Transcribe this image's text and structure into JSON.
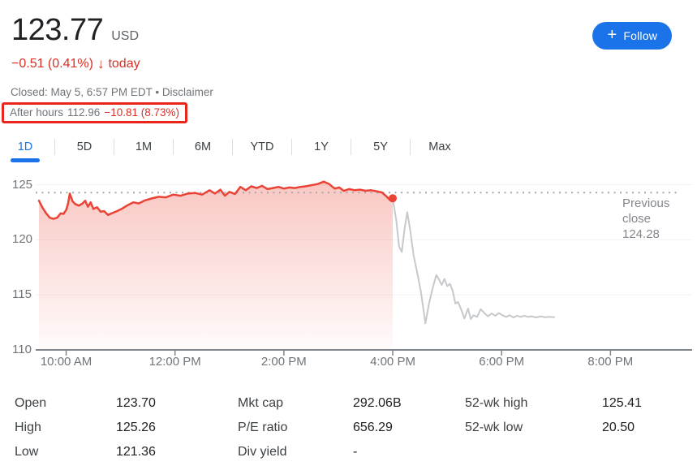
{
  "header": {
    "price": "123.77",
    "currency": "USD",
    "change": "−0.51 (0.41%)",
    "change_arrow": "↓",
    "change_suffix": "today",
    "status_line": "Closed: May 5, 6:57 PM EDT • ",
    "disclaimer_link": "Disclaimer",
    "after_hours": {
      "label": "After hours",
      "price": "112.96",
      "change": "−10.81 (8.73%)"
    },
    "follow_button": {
      "plus_icon": "+",
      "label": "Follow"
    }
  },
  "tabs": {
    "items": [
      "1D",
      "5D",
      "1M",
      "6M",
      "YTD",
      "1Y",
      "5Y",
      "Max"
    ],
    "active": "1D"
  },
  "chart": {
    "previous_close_lines": [
      "Previous",
      "close",
      "124.28"
    ]
  },
  "chart_data": {
    "type": "line",
    "title": "1D intraday price chart",
    "x_unit": "minutes since 9:30 AM",
    "x_axis": {
      "labels": [
        "10:00 AM",
        "12:00 PM",
        "2:00 PM",
        "4:00 PM",
        "6:00 PM",
        "8:00 PM"
      ],
      "tick_minutes": [
        30,
        150,
        270,
        390,
        510,
        630
      ]
    },
    "y_axis": {
      "ticks": [
        110,
        115,
        120,
        125
      ],
      "range": [
        110,
        126.3
      ]
    },
    "previous_close": 124.28,
    "colors": {
      "regular": "#ea4335",
      "after_hours_line": "#c6c9cc",
      "accent_blue": "#1a73e8",
      "change_red": "#d93025",
      "annotation_box": "#e8261d"
    },
    "series": [
      {
        "name": "regular-session",
        "color": "#ea4335",
        "points": [
          [
            0,
            123.55
          ],
          [
            4,
            122.9
          ],
          [
            8,
            122.4
          ],
          [
            12,
            122.0
          ],
          [
            16,
            121.9
          ],
          [
            20,
            122.0
          ],
          [
            24,
            122.4
          ],
          [
            27,
            122.35
          ],
          [
            30,
            122.7
          ],
          [
            32,
            123.25
          ],
          [
            34,
            124.2
          ],
          [
            37,
            123.5
          ],
          [
            40,
            123.25
          ],
          [
            44,
            123.1
          ],
          [
            48,
            123.3
          ],
          [
            51,
            123.55
          ],
          [
            54,
            123.0
          ],
          [
            57,
            123.4
          ],
          [
            60,
            122.8
          ],
          [
            64,
            122.95
          ],
          [
            68,
            122.55
          ],
          [
            72,
            122.6
          ],
          [
            76,
            122.25
          ],
          [
            80,
            122.4
          ],
          [
            86,
            122.6
          ],
          [
            92,
            122.85
          ],
          [
            98,
            123.15
          ],
          [
            104,
            123.4
          ],
          [
            110,
            123.3
          ],
          [
            116,
            123.55
          ],
          [
            124,
            123.75
          ],
          [
            132,
            123.9
          ],
          [
            140,
            123.85
          ],
          [
            148,
            124.1
          ],
          [
            156,
            124.0
          ],
          [
            164,
            124.2
          ],
          [
            172,
            124.25
          ],
          [
            180,
            124.1
          ],
          [
            188,
            124.5
          ],
          [
            194,
            124.2
          ],
          [
            200,
            124.55
          ],
          [
            205,
            124.0
          ],
          [
            210,
            124.35
          ],
          [
            216,
            124.15
          ],
          [
            222,
            124.8
          ],
          [
            228,
            124.5
          ],
          [
            234,
            124.85
          ],
          [
            240,
            124.7
          ],
          [
            246,
            124.9
          ],
          [
            252,
            124.6
          ],
          [
            258,
            124.7
          ],
          [
            264,
            124.8
          ],
          [
            270,
            124.65
          ],
          [
            276,
            124.75
          ],
          [
            282,
            124.7
          ],
          [
            288,
            124.8
          ],
          [
            294,
            124.85
          ],
          [
            300,
            124.95
          ],
          [
            307,
            125.05
          ],
          [
            314,
            125.28
          ],
          [
            320,
            125.05
          ],
          [
            326,
            124.65
          ],
          [
            331,
            124.75
          ],
          [
            336,
            124.45
          ],
          [
            342,
            124.6
          ],
          [
            348,
            124.5
          ],
          [
            354,
            124.55
          ],
          [
            360,
            124.45
          ],
          [
            366,
            124.5
          ],
          [
            372,
            124.4
          ],
          [
            378,
            124.3
          ],
          [
            383,
            123.95
          ],
          [
            387,
            123.6
          ],
          [
            390,
            123.77
          ]
        ]
      },
      {
        "name": "after-hours",
        "color": "#c6c9cc",
        "points": [
          [
            390,
            123.77
          ],
          [
            394,
            121.7
          ],
          [
            397,
            119.4
          ],
          [
            400,
            118.9
          ],
          [
            403,
            121.0
          ],
          [
            406,
            122.5
          ],
          [
            409,
            121.0
          ],
          [
            413,
            118.6
          ],
          [
            417,
            117.0
          ],
          [
            421,
            115.3
          ],
          [
            426,
            112.4
          ],
          [
            430,
            114.2
          ],
          [
            434,
            115.6
          ],
          [
            438,
            116.8
          ],
          [
            441,
            116.4
          ],
          [
            444,
            115.9
          ],
          [
            447,
            116.45
          ],
          [
            450,
            115.8
          ],
          [
            453,
            116.0
          ],
          [
            456,
            115.4
          ],
          [
            459,
            114.2
          ],
          [
            462,
            114.35
          ],
          [
            466,
            113.55
          ],
          [
            469,
            112.85
          ],
          [
            473,
            113.75
          ],
          [
            476,
            112.8
          ],
          [
            479,
            113.15
          ],
          [
            483,
            113.0
          ],
          [
            487,
            113.7
          ],
          [
            491,
            113.35
          ],
          [
            495,
            113.05
          ],
          [
            499,
            113.3
          ],
          [
            503,
            113.1
          ],
          [
            507,
            113.35
          ],
          [
            511,
            113.15
          ],
          [
            515,
            113.0
          ],
          [
            519,
            113.15
          ],
          [
            523,
            112.95
          ],
          [
            527,
            113.1
          ],
          [
            531,
            113.0
          ],
          [
            535,
            113.1
          ],
          [
            539,
            113.0
          ],
          [
            543,
            113.05
          ],
          [
            548,
            112.95
          ],
          [
            553,
            113.05
          ],
          [
            558,
            112.96
          ],
          [
            563,
            113.0
          ],
          [
            568,
            112.96
          ]
        ]
      }
    ],
    "legend": "none",
    "grid": "faint horizontal lines at 115/120/125, dotted line at previous close"
  },
  "stats": {
    "columns": [
      {
        "rows": [
          {
            "label": "Open",
            "value": "123.70"
          },
          {
            "label": "High",
            "value": "125.26"
          },
          {
            "label": "Low",
            "value": "121.36"
          }
        ]
      },
      {
        "rows": [
          {
            "label": "Mkt cap",
            "value": "292.06B"
          },
          {
            "label": "P/E ratio",
            "value": "656.29"
          },
          {
            "label": "Div yield",
            "value": "-"
          }
        ]
      },
      {
        "rows": [
          {
            "label": "52-wk high",
            "value": "125.41"
          },
          {
            "label": "52-wk low",
            "value": "20.50"
          }
        ]
      }
    ]
  }
}
